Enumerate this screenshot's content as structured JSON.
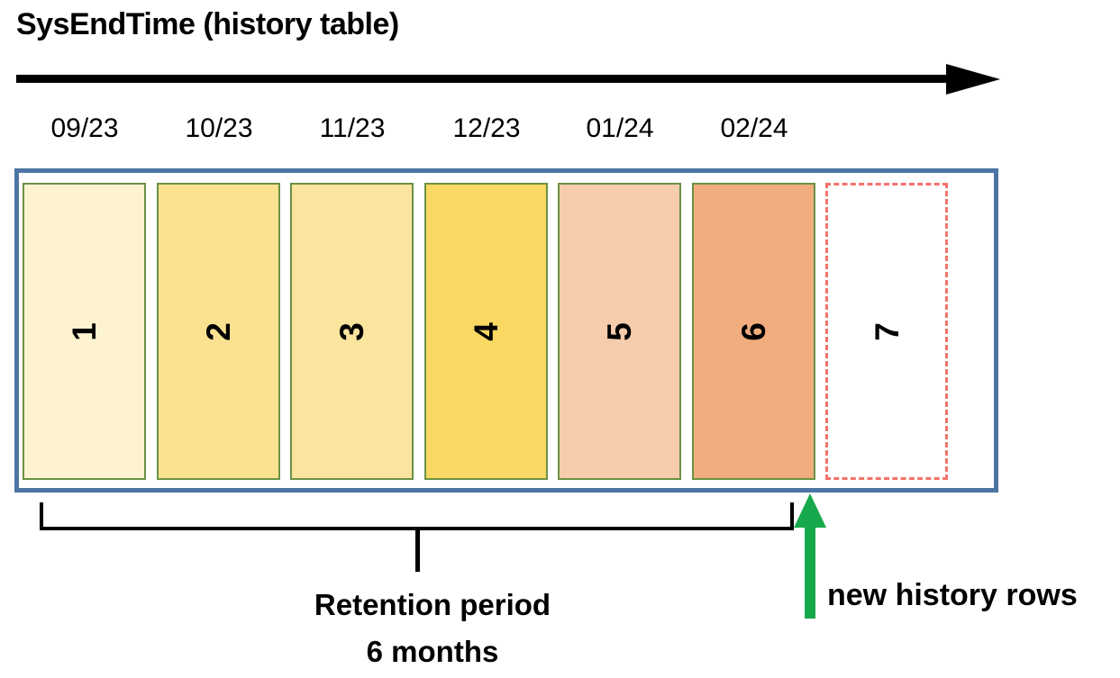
{
  "diagram": {
    "title": "SysEndTime (history table)",
    "timeline_months": [
      "09/23",
      "10/23",
      "11/23",
      "12/23",
      "01/24",
      "02/24"
    ],
    "partitions": [
      {
        "label": "1",
        "fill": "#FDF3D0",
        "border": "solid"
      },
      {
        "label": "2",
        "fill": "#FBE291",
        "border": "solid"
      },
      {
        "label": "3",
        "fill": "#FBE49E",
        "border": "solid"
      },
      {
        "label": "4",
        "fill": "#FAD864",
        "border": "solid"
      },
      {
        "label": "5",
        "fill": "#F5CCAC",
        "border": "solid"
      },
      {
        "label": "6",
        "fill": "#F1AD7D",
        "border": "solid"
      },
      {
        "label": "7",
        "fill": "#FFFFFF",
        "border": "dashed"
      }
    ],
    "retention_label": {
      "line1": "Retention period",
      "line2": "6 months"
    },
    "new_rows_label": "new history rows",
    "colors": {
      "container_border": "#4C75A3",
      "partition_border": "#6A9244",
      "future_partition_border": "#F4736D",
      "timeline_arrow": "#000000",
      "new_rows_arrow": "#17A84C",
      "text": "#000000"
    }
  }
}
